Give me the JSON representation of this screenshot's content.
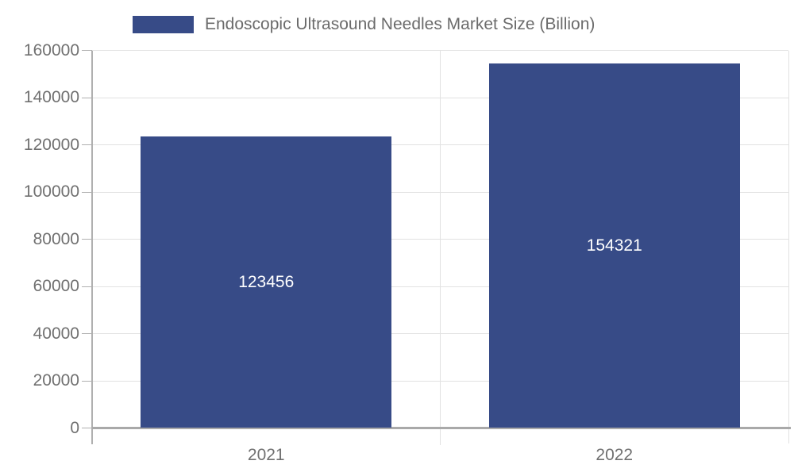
{
  "chart_data": {
    "type": "bar",
    "title": "Endoscopic Ultrasound Needles Market Size (Billion)",
    "categories": [
      "2021",
      "2022"
    ],
    "values": [
      123456,
      154321
    ],
    "series": [
      {
        "name": "Endoscopic Ultrasound Needles Market Size (Billion)",
        "values": [
          123456,
          154321
        ]
      }
    ],
    "xlabel": "",
    "ylabel": "",
    "ylim": [
      0,
      160000
    ],
    "yticks": [
      0,
      20000,
      40000,
      60000,
      80000,
      100000,
      120000,
      140000,
      160000
    ],
    "grid": true,
    "legend_position": "top",
    "bar_color": "#374b87",
    "value_label_color": "#ffffff"
  },
  "colors": {
    "background": "#ffffff",
    "axis_line": "#a9a9a9",
    "tick_mark": "#b0b0b0",
    "gridline": "#e2e2e2",
    "tick_label_text": "#707070",
    "title_text": "#6b6b6b"
  }
}
